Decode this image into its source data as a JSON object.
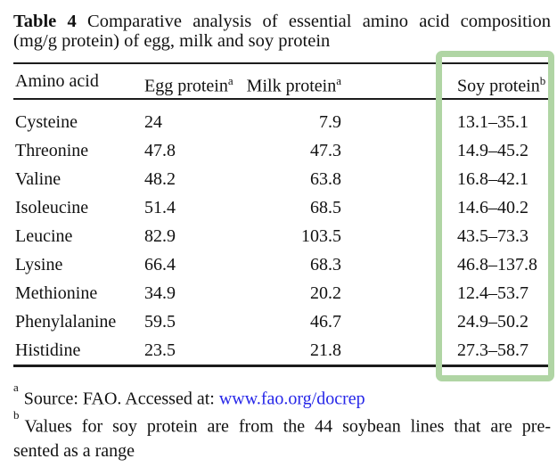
{
  "title": {
    "table_label": "Table 4",
    "caption_line1": "Comparative analysis of essential amino acid composition",
    "caption_line2": "(mg/g protein) of egg, milk and soy protein"
  },
  "table": {
    "columns": [
      {
        "label": "Amino acid",
        "superscript": ""
      },
      {
        "label": "Egg protein",
        "superscript": "a"
      },
      {
        "label": "Milk protein",
        "superscript": "a"
      },
      {
        "label": "Soy protein",
        "superscript": "b"
      }
    ],
    "rows": [
      {
        "amino_acid": "Cysteine",
        "egg": "24",
        "milk": "7.9",
        "soy": "13.1–35.1"
      },
      {
        "amino_acid": "Threonine",
        "egg": "47.8",
        "milk": "47.3",
        "soy": "14.9–45.2"
      },
      {
        "amino_acid": "Valine",
        "egg": "48.2",
        "milk": "63.8",
        "soy": "16.8–42.1"
      },
      {
        "amino_acid": "Isoleucine",
        "egg": "51.4",
        "milk": "68.5",
        "soy": "14.6–40.2"
      },
      {
        "amino_acid": "Leucine",
        "egg": "82.9",
        "milk": "103.5",
        "soy": "43.5–73.3"
      },
      {
        "amino_acid": "Lysine",
        "egg": "66.4",
        "milk": "68.3",
        "soy": "46.8–137.8"
      },
      {
        "amino_acid": "Methionine",
        "egg": "34.9",
        "milk": "20.2",
        "soy": "12.4–53.7"
      },
      {
        "amino_acid": "Phenylalanine",
        "egg": "59.5",
        "milk": "46.7",
        "soy": "24.9–50.2"
      },
      {
        "amino_acid": "Histidine",
        "egg": "23.5",
        "milk": "21.8",
        "soy": "27.3–58.7"
      }
    ]
  },
  "footnotes": {
    "a": {
      "marker": "a",
      "text": "Source: FAO. Accessed at:",
      "link": "www.fao.org/docrep"
    },
    "b": {
      "marker": "b",
      "line1": "Values for soy protein are from the 44 soybean lines that are pre-",
      "line2": "sented as a range"
    }
  },
  "highlight": {
    "target": "soy-protein-column",
    "color": "#b0d5a4"
  },
  "colors": {
    "link": "#2626e8",
    "rule": "#1c1c1c",
    "text": "#111111"
  }
}
